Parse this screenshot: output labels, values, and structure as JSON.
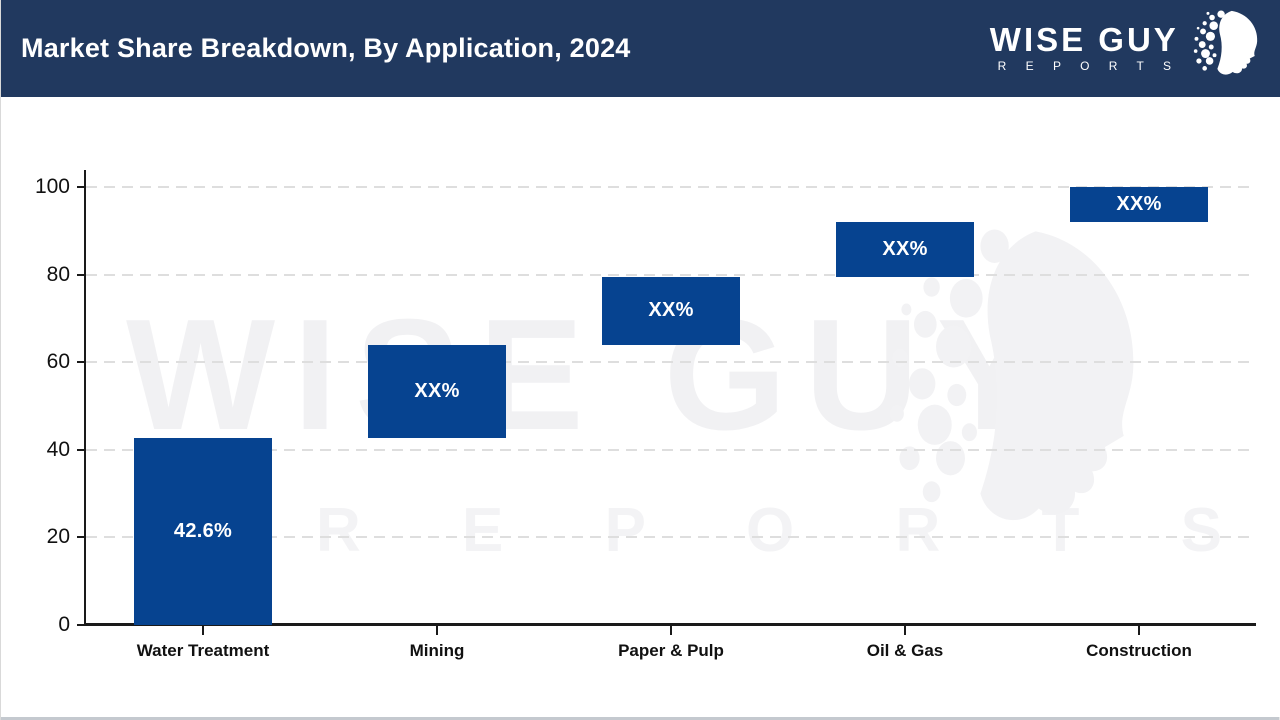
{
  "header": {
    "title": "Market Share Breakdown, By Application, 2024",
    "bg_color": "#21395f",
    "logo": {
      "line1": "WISE GUY",
      "line2": "R E P O R T S"
    }
  },
  "watermark": {
    "line1": "WISE GUY",
    "line2": "R E P O R T S"
  },
  "chart_data": {
    "type": "bar",
    "subtype": "waterfall",
    "title": "Market Share Breakdown, By Application, 2024",
    "categories": [
      "Water Treatment",
      "Mining",
      "Paper & Pulp",
      "Oil & Gas",
      "Construction"
    ],
    "segments": [
      {
        "category": "Water Treatment",
        "start": 0,
        "end": 42.6,
        "label": "42.6%"
      },
      {
        "category": "Mining",
        "start": 42.6,
        "end": 63.9,
        "label": "XX%"
      },
      {
        "category": "Paper & Pulp",
        "start": 63.9,
        "end": 79.5,
        "label": "XX%"
      },
      {
        "category": "Oil & Gas",
        "start": 79.5,
        "end": 92.1,
        "label": "XX%"
      },
      {
        "category": "Construction",
        "start": 92.1,
        "end": 100,
        "label": "XX%"
      }
    ],
    "y_ticks": [
      0,
      20,
      40,
      60,
      80,
      100
    ],
    "ylim": [
      0,
      104
    ],
    "xlabel": "",
    "ylabel": "",
    "grid": "dashed-horizontal",
    "legend": "none",
    "bar_color": "#064390",
    "label_color": "#ffffff",
    "axis_color": "#1a1a1a"
  }
}
